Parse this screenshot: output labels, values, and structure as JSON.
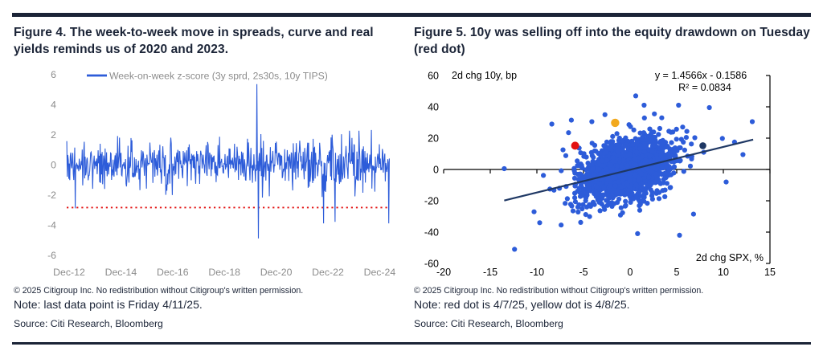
{
  "page": {
    "bg": "#ffffff",
    "rule_color": "#1b2437",
    "text_navy": "#1b2437",
    "accent_blue": "#2d5cd9",
    "trend_navy": "#1f3864",
    "red": "#e31212",
    "yellow": "#f2a91d",
    "axis_gray": "#8c8c8c",
    "axis_black": "#000000"
  },
  "figure4": {
    "title": "Figure 4. The week-to-week move in spreads, curve and real yields reminds us of 2020 and 2023.",
    "footer": {
      "copyright": "© 2025 Citigroup Inc. No redistribution without Citigroup's written permission.",
      "note": "Note: last data point is Friday 4/11/25.",
      "source": "Source: Citi Research, Bloomberg"
    }
  },
  "figure5": {
    "title": "Figure 5. 10y was selling off into the equity drawdown on Tuesday (red dot)",
    "footer": {
      "copyright": "© 2025 Citigroup Inc. No redistribution without Citigroup's written permission.",
      "note": "Note: red dot is 4/7/25, yellow dot is 4/8/25.",
      "source": "Source: Citi Research, Bloomberg"
    }
  },
  "chart_data": [
    {
      "type": "line",
      "title": "Figure 4. The week-to-week move in spreads, curve and real yields reminds us of 2020 and 2023.",
      "legend": "Week-on-week z-score (3y sprd, 2s30s, 10y TIPS)",
      "legend_position": "top-left-inside",
      "x_tick_labels": [
        "Dec-12",
        "Dec-14",
        "Dec-16",
        "Dec-18",
        "Dec-20",
        "Dec-22",
        "Dec-24"
      ],
      "y_ticks": [
        6,
        4,
        2,
        0,
        -2,
        -4,
        -6
      ],
      "ylim": [
        -6,
        6
      ],
      "x_start_year": 2012.83,
      "x_end_year": 2025.3,
      "points_per_year": 52,
      "grid": "off",
      "noise_sd": 0.72,
      "noise_clip": 2.25,
      "seed": 42,
      "vol_windows": [
        {
          "from": 2022.0,
          "to": 2024.0,
          "mult": 1.22
        }
      ],
      "spikes": [
        {
          "t": 2013.15,
          "v": -2.9
        },
        {
          "t": 2014.8,
          "v": 1.9
        },
        {
          "t": 2020.17,
          "v": 5.35
        },
        {
          "t": 2020.23,
          "v": -4.9
        },
        {
          "t": 2022.75,
          "v": -3.9
        },
        {
          "t": 2023.2,
          "v": -3.8
        },
        {
          "t": 2024.6,
          "v": 2.3
        },
        {
          "t": 2025.28,
          "v": -3.9
        }
      ],
      "threshold_line": {
        "value": -2.85,
        "style": "dotted",
        "color": "#e31212"
      }
    },
    {
      "type": "scatter",
      "title": "Figure 5. 10y was selling off into the equity drawdown on Tuesday (red dot)",
      "xlabel": "2d chg SPX, %",
      "ylabel": "2d chg 10y, bp",
      "equation": "y = 1.4566x - 0.1586",
      "r_squared": "R² = 0.0834",
      "x_ticks": [
        -20,
        -15,
        -10,
        -5,
        0,
        5,
        10,
        15
      ],
      "y_ticks": [
        60,
        40,
        20,
        0,
        -20,
        -40,
        -60
      ],
      "xlim": [
        -20,
        15
      ],
      "ylim": [
        -60,
        60
      ],
      "grid": "off",
      "trendline": {
        "slope": 1.4566,
        "intercept": -0.1586,
        "x_from": -13.5,
        "x_to": 13.2
      },
      "cloud": {
        "n": 1750,
        "seed": 7,
        "x_mean": -0.3,
        "x_sd": 2.4,
        "resid_sd": 8.8,
        "x_range": [
          -8.4,
          7.9
        ],
        "y_range": [
          -34,
          33
        ]
      },
      "outliers": [
        [
          -13.5,
          0.5
        ],
        [
          -12.4,
          -51
        ],
        [
          -9.3,
          -3.8
        ],
        [
          -10.3,
          -27
        ],
        [
          -9.7,
          -34
        ],
        [
          -8.6,
          -12.5
        ],
        [
          -8.4,
          29
        ],
        [
          -6.3,
          31.5
        ],
        [
          -4.1,
          30.5
        ],
        [
          -6.6,
          23.5
        ],
        [
          -7.2,
          12.5
        ],
        [
          -6.9,
          8.8
        ],
        [
          -7.4,
          -35.5
        ],
        [
          -5.3,
          -33.8
        ],
        [
          -5.6,
          -24
        ],
        [
          0.6,
          47
        ],
        [
          1.5,
          41
        ],
        [
          5.2,
          41
        ],
        [
          8.5,
          39.5
        ],
        [
          13.1,
          30.5
        ],
        [
          11.2,
          17.5
        ],
        [
          9.9,
          19.8
        ],
        [
          12.1,
          9.5
        ],
        [
          10.3,
          -8
        ],
        [
          6.8,
          -28.5
        ],
        [
          5.3,
          -42
        ],
        [
          0.8,
          -41
        ],
        [
          -2.7,
          35
        ],
        [
          2.6,
          35.5
        ],
        [
          3.4,
          33
        ]
      ],
      "special_points": [
        {
          "x": -5.9,
          "y": 15.2,
          "color": "#e31212",
          "label": "red dot is 4/7/25"
        },
        {
          "x": -1.6,
          "y": 29.8,
          "color": "#f2a91d",
          "label": "yellow dot is 4/8/25"
        },
        {
          "x": 7.8,
          "y": 15.2,
          "color": "#1f3864",
          "label": "dark navy dot"
        }
      ]
    }
  ]
}
